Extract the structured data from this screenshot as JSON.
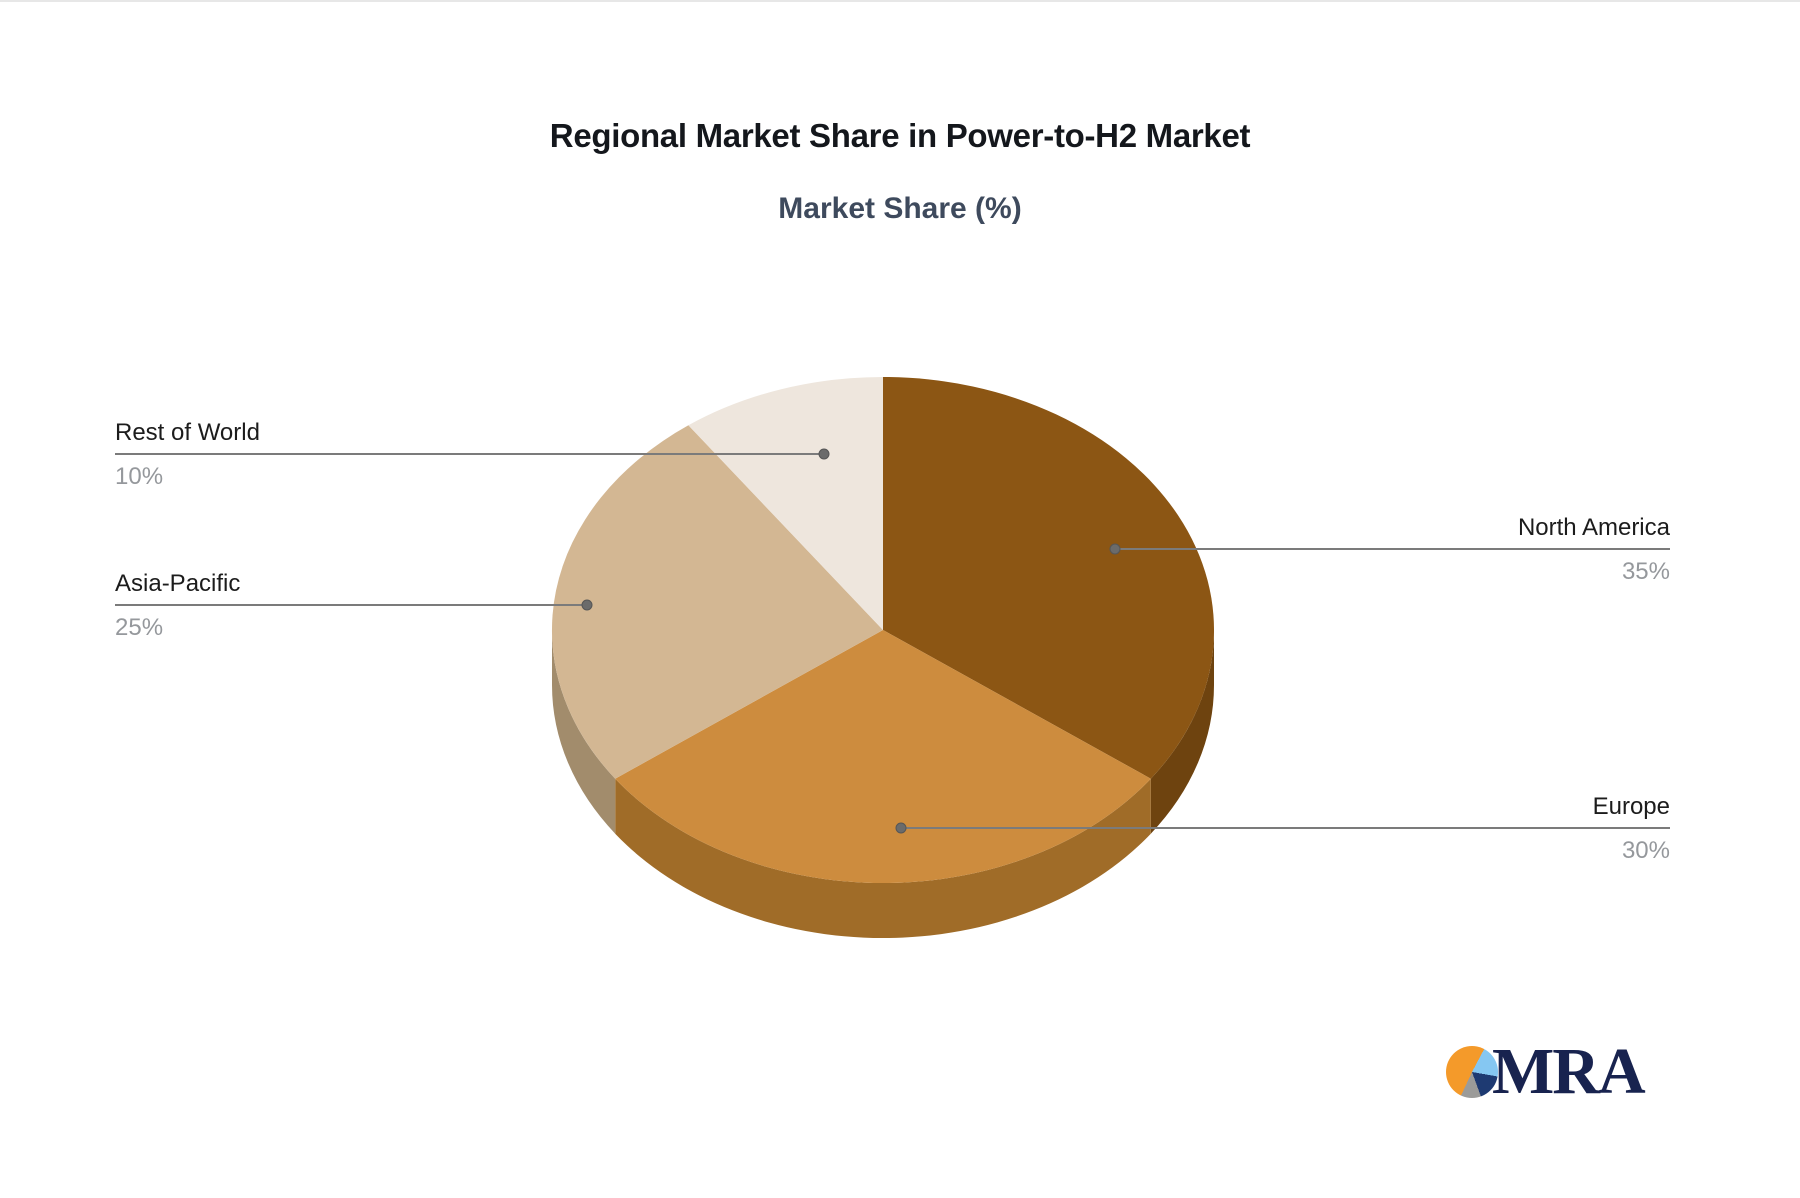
{
  "title": "Regional Market Share in Power-to-H2 Market",
  "subtitle": "Market Share (%)",
  "chart_data": {
    "type": "pie",
    "style": "3d",
    "title": "Regional Market Share in Power-to-H2 Market",
    "subtitle": "Market Share (%)",
    "unit": "%",
    "start_angle": "12-o-clock, clockwise",
    "legend": "none (callout labels with connector lines)",
    "series": [
      {
        "label": "North America",
        "value": 35,
        "display": "35%",
        "color": "#8C5614",
        "side_color": "#6E430F"
      },
      {
        "label": "Europe",
        "value": 30,
        "display": "30%",
        "color": "#CD8C3E",
        "side_color": "#A06C28"
      },
      {
        "label": "Asia-Pacific",
        "value": 25,
        "display": "25%",
        "color": "#D3B793",
        "side_color": "#A28C6C"
      },
      {
        "label": "Rest of World",
        "value": 10,
        "display": "10%",
        "color": "#EEE6DD",
        "side_color": "#C4B8A9"
      }
    ],
    "label_color": "#1c1c1c",
    "value_color": "#95989c",
    "connector_color": "#7b7b7b",
    "connector_dot_color": "#6b6b6b"
  },
  "logo": {
    "text": "MRA",
    "icon": "pie-chart-icon",
    "colors": {
      "orange": "#f49a2a",
      "blue": "#85c7f2",
      "navy": "#1e3a72",
      "gray": "#9b9b99",
      "text": "#18234f"
    }
  }
}
